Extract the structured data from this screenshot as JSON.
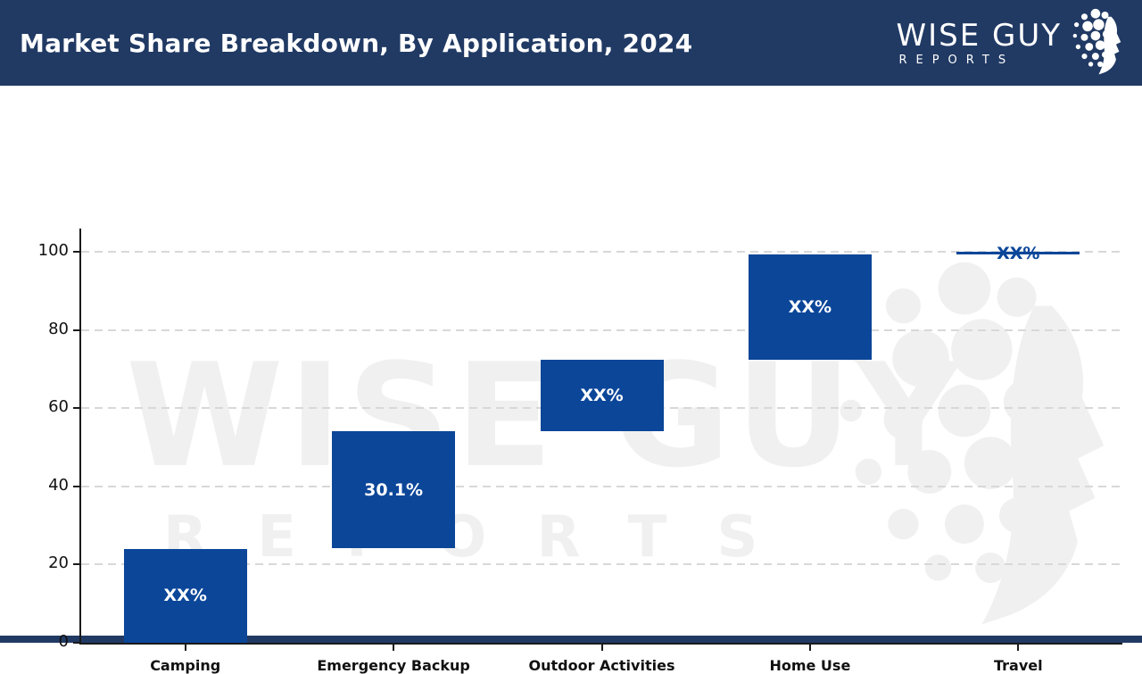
{
  "header": {
    "title": "Market Share Breakdown, By Application, 2024",
    "logo": {
      "line1": "WISE GUY",
      "line2": "REPORTS"
    },
    "bg_color": "#213A64"
  },
  "watermark": {
    "line1": "WISE GUY",
    "line2": "REPORTS"
  },
  "footer": {
    "bg_color": "#213A64"
  },
  "chart_data": {
    "type": "bar",
    "subtype": "waterfall",
    "title": "Market Share Breakdown, By Application, 2024",
    "categories": [
      "Camping",
      "Emergency Backup",
      "Outdoor Activities",
      "Home Use",
      "Travel"
    ],
    "segments": [
      {
        "category": "Camping",
        "start": 0,
        "end": 24.1,
        "value": 24.1,
        "label": "XX%",
        "label_color": "#ffffff"
      },
      {
        "category": "Emergency Backup",
        "start": 24.1,
        "end": 54.2,
        "value": 30.1,
        "label": "30.1%",
        "label_color": "#ffffff"
      },
      {
        "category": "Outdoor Activities",
        "start": 54.2,
        "end": 72.4,
        "value": 18.2,
        "label": "XX%",
        "label_color": "#ffffff"
      },
      {
        "category": "Home Use",
        "start": 72.4,
        "end": 99.3,
        "value": 26.9,
        "label": "XX%",
        "label_color": "#ffffff"
      },
      {
        "category": "Travel",
        "start": 99.3,
        "end": 100,
        "value": 0.7,
        "label": "XX%",
        "label_color": "#0B4699"
      }
    ],
    "yticks": [
      0,
      20,
      40,
      60,
      80,
      100
    ],
    "ylim": [
      0,
      106
    ],
    "xlabel": "",
    "ylabel": "",
    "bar_color": "#0B4699",
    "grid": "horizontal-dashed",
    "legend": "none"
  }
}
